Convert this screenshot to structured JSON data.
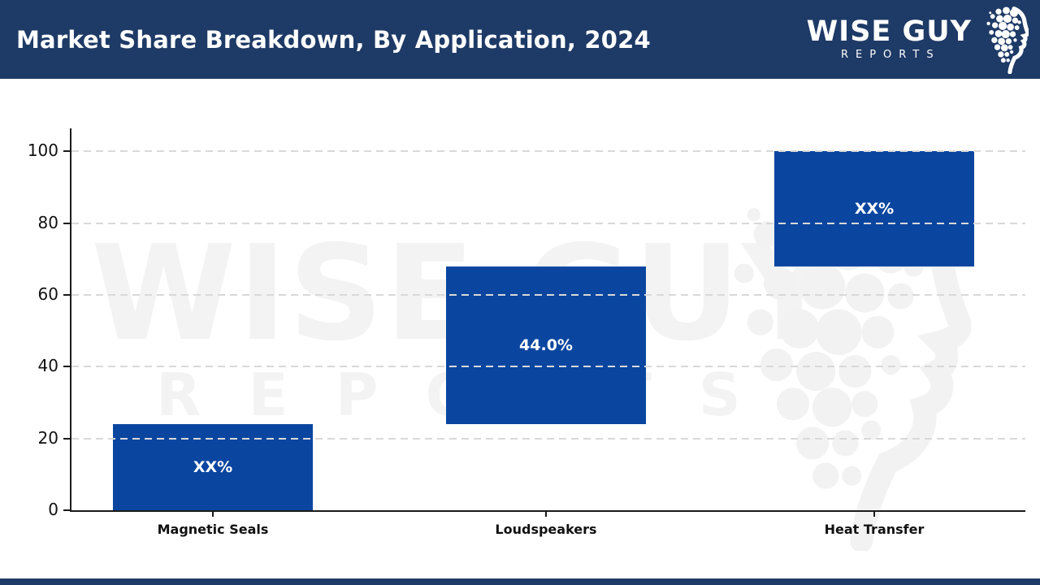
{
  "header": {
    "title": "Market Share Breakdown, By Application, 2024",
    "logo": {
      "name": "WISE GUY",
      "subname": "REPORTS"
    }
  },
  "watermark": {
    "line1": "WISE GUY",
    "line2": "REPORTS"
  },
  "footer": {},
  "colors": {
    "header_bg": "#1e3a66",
    "bar": "#0a46a0",
    "bar_label": "#ffffff",
    "grid": "#d9d9d9",
    "axis": "#1a1a1a",
    "watermark": "#f2f2f2"
  },
  "chart_data": {
    "type": "bar",
    "subtype": "floating-segment-breakdown",
    "title": "Market Share Breakdown, By Application, 2024",
    "categories": [
      "Magnetic Seals",
      "Loudspeakers",
      "Heat Transfer"
    ],
    "series": [
      {
        "name": "Magnetic Seals",
        "start": 0,
        "end": 24,
        "value_label": "XX%"
      },
      {
        "name": "Loudspeakers",
        "start": 24,
        "end": 68,
        "value_label": "44.0%"
      },
      {
        "name": "Heat Transfer",
        "start": 68,
        "end": 100,
        "value_label": "XX%"
      }
    ],
    "xlabel": "",
    "ylabel": "",
    "yticks": [
      0,
      20,
      40,
      60,
      80,
      100
    ],
    "ylim": [
      0,
      106
    ],
    "grid": "horizontal-dashed",
    "legend": "none"
  }
}
